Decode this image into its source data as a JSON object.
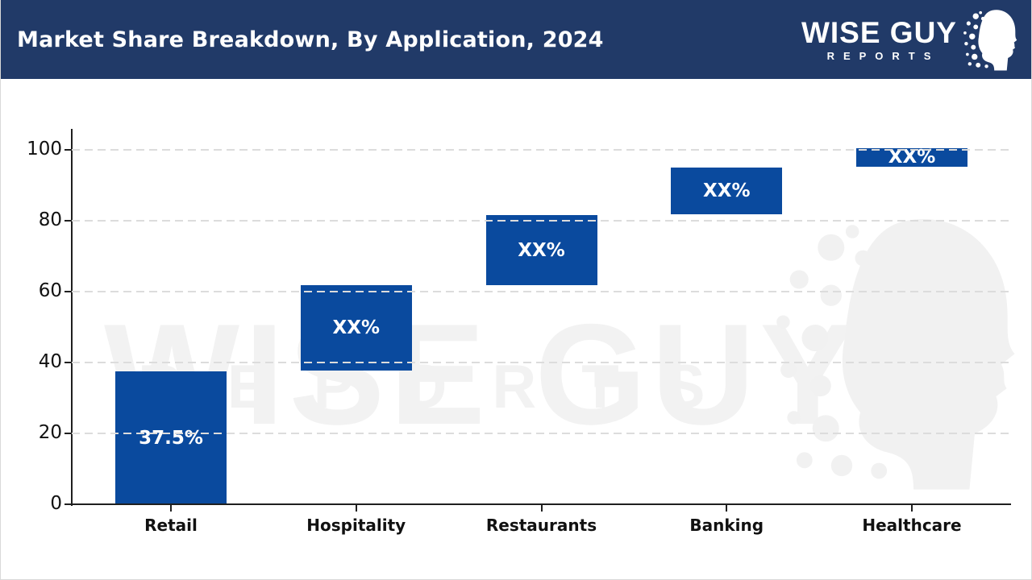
{
  "header": {
    "title": "Market Share Breakdown, By Application, 2024",
    "logo": {
      "line1": "WISE GUY",
      "line2": "REPORTS"
    }
  },
  "watermark": {
    "line1": "WISE GUY",
    "line2": "REPORTS"
  },
  "chart_data": {
    "type": "bar",
    "subtype": "waterfall",
    "title": "Market Share Breakdown, By Application, 2024",
    "categories": [
      "Retail",
      "Hospitality",
      "Restaurants",
      "Banking",
      "Healthcare"
    ],
    "segments": [
      {
        "category": "Retail",
        "start": 0,
        "end": 37.5,
        "label": "37.5%"
      },
      {
        "category": "Hospitality",
        "start": 37.8,
        "end": 61.8,
        "label": "XX%"
      },
      {
        "category": "Restaurants",
        "start": 61.8,
        "end": 81.6,
        "label": "XX%"
      },
      {
        "category": "Banking",
        "start": 81.8,
        "end": 95.0,
        "label": "XX%"
      },
      {
        "category": "Healthcare",
        "start": 95.2,
        "end": 100.5,
        "label": "XX%"
      }
    ],
    "ytick_values": [
      0,
      20,
      40,
      60,
      80,
      100
    ],
    "ytick_labels": [
      "0",
      "20",
      "40",
      "60",
      "80",
      "100"
    ],
    "ylim": [
      0,
      106
    ],
    "xlabel": "",
    "ylabel": "",
    "grid": "horizontal-dashed",
    "legend": "none"
  },
  "colors": {
    "header_bg": "#213A68",
    "bar_blue": "#0A4A9E",
    "grid_gray": "#DCDCDC",
    "axis_black": "#1F1F1F",
    "watermark_gray": "#F2F2F2",
    "bar_label_white": "#FFFFFF",
    "tick_text": "#111111"
  }
}
